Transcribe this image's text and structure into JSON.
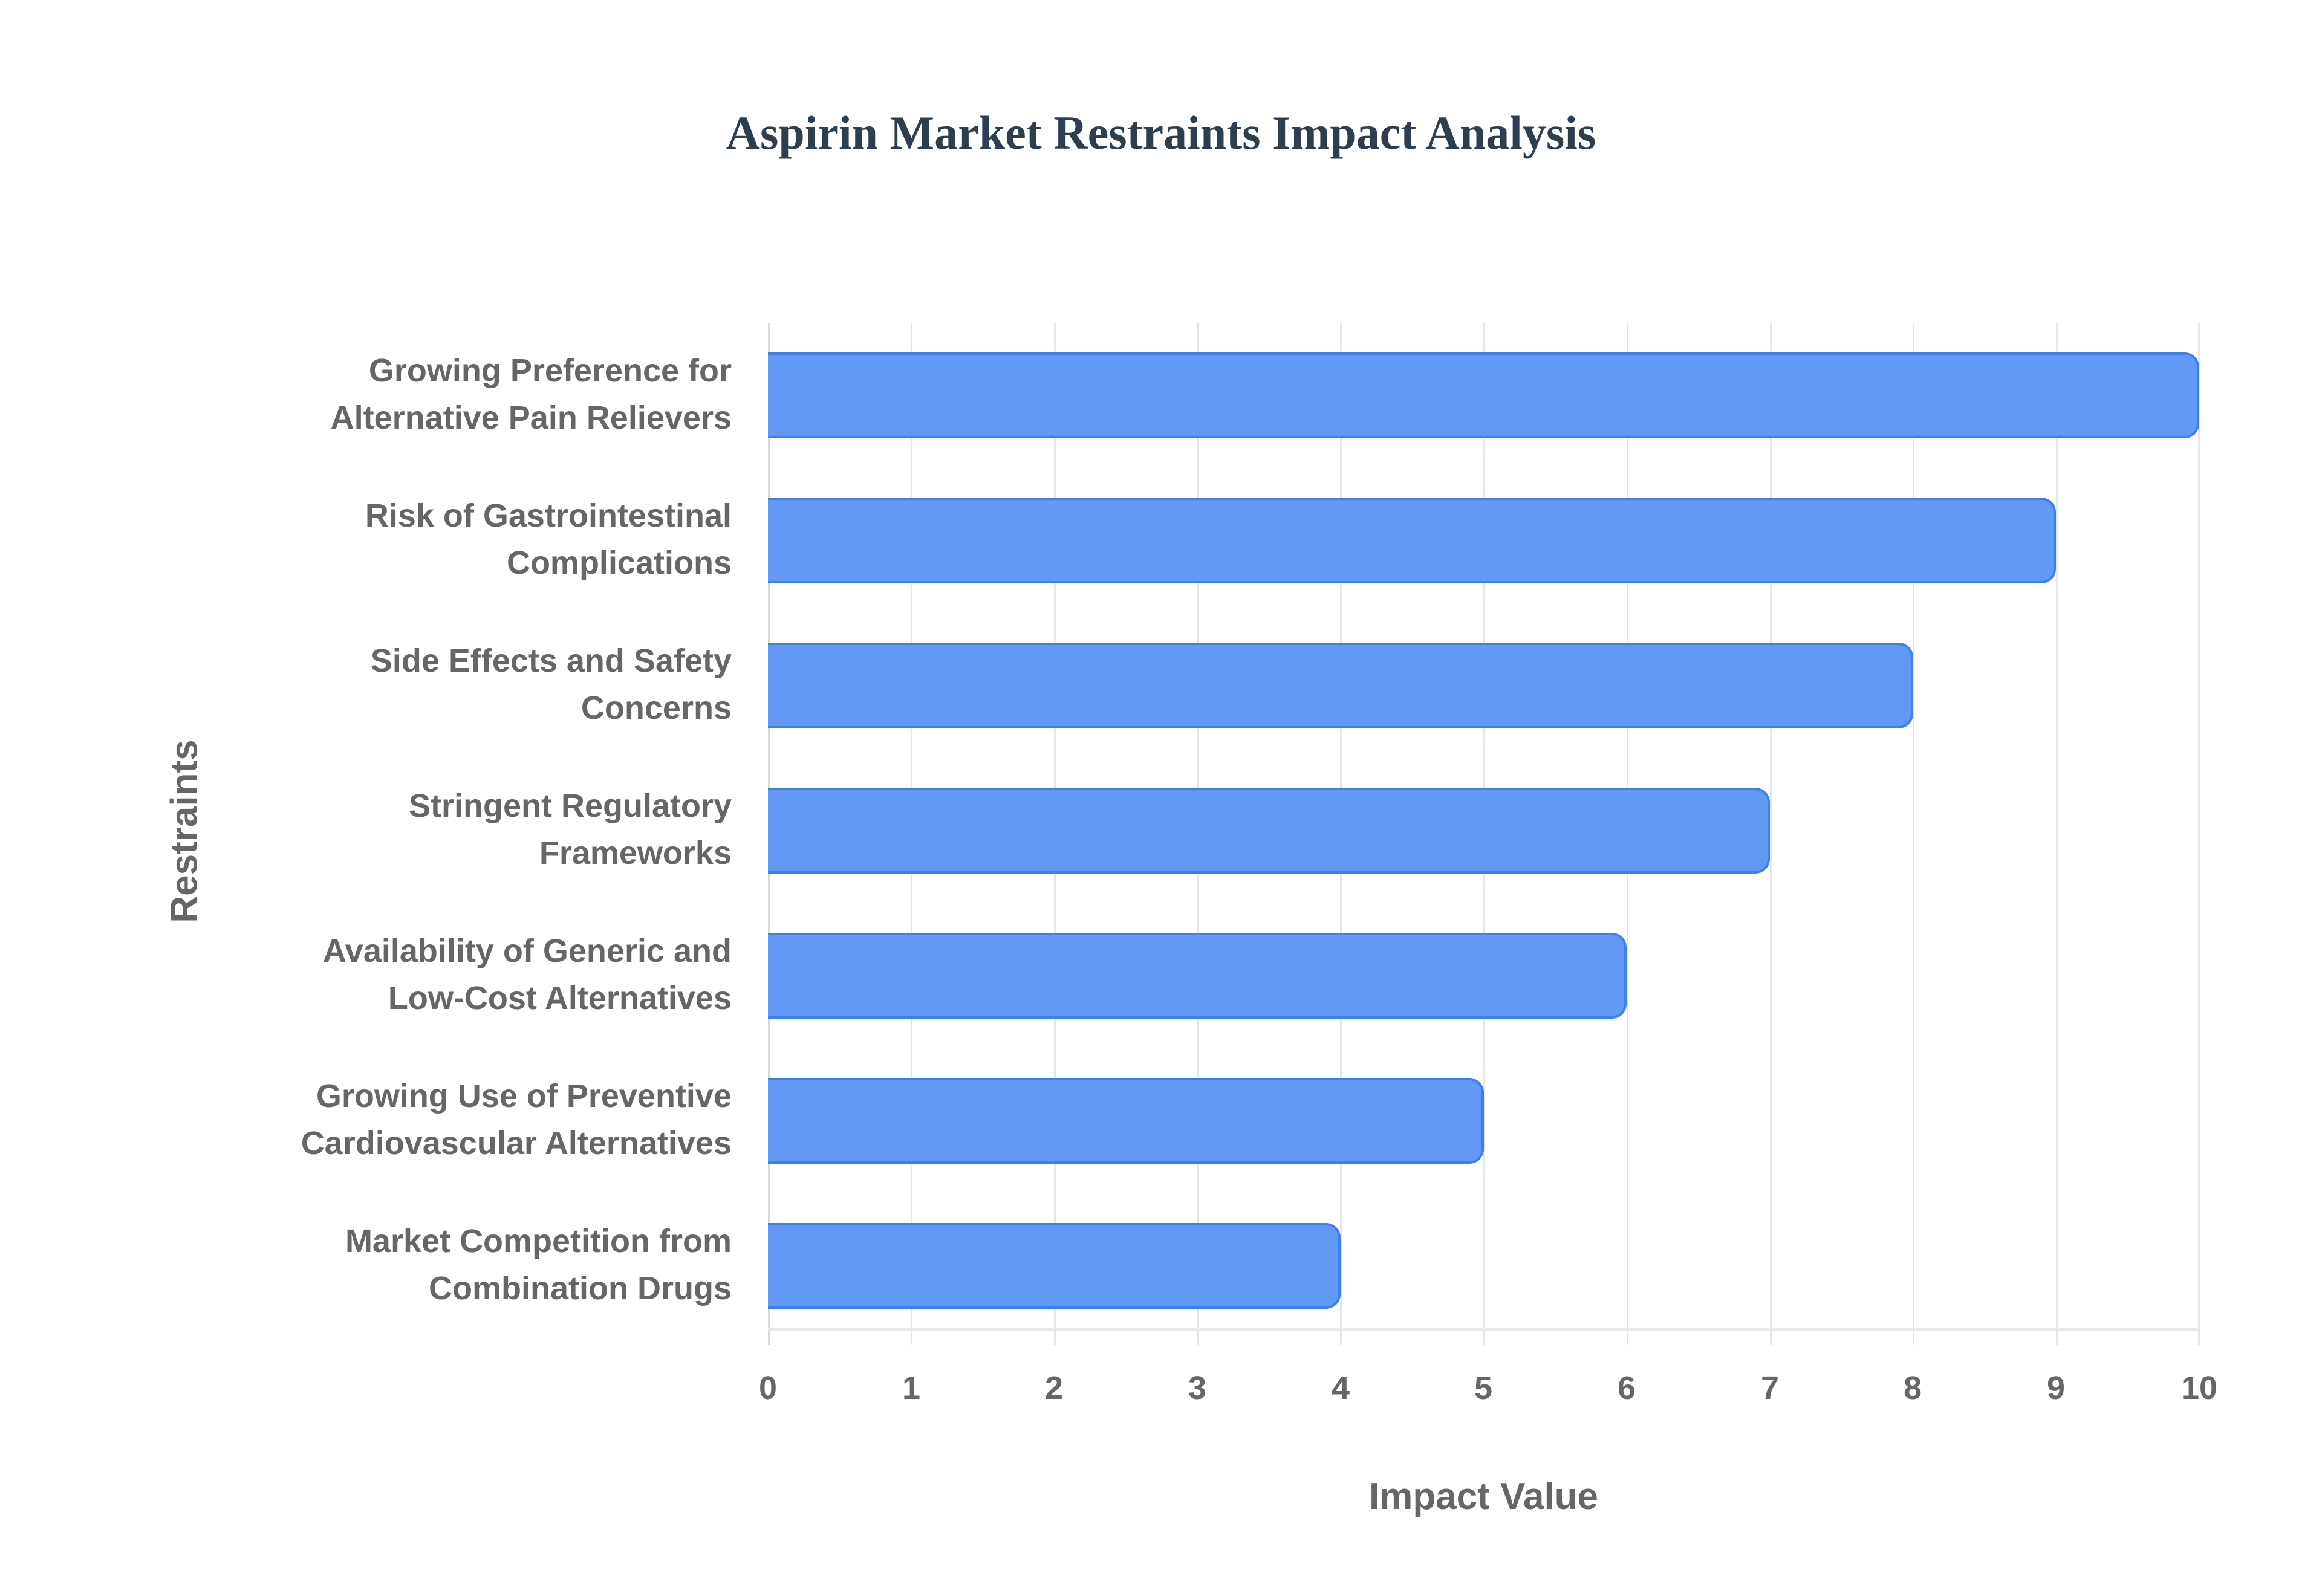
{
  "title": "Aspirin Market Restraints Impact Analysis",
  "axes": {
    "x_title": "Impact Value",
    "y_title": "Restraints",
    "x_ticks": [
      "0",
      "1",
      "2",
      "3",
      "4",
      "5",
      "6",
      "7",
      "8",
      "9",
      "10"
    ]
  },
  "categories": [
    {
      "line1": "Growing Preference for",
      "line2": "Alternative Pain Relievers",
      "value": 10
    },
    {
      "line1": "Risk of Gastrointestinal",
      "line2": "Complications",
      "value": 9
    },
    {
      "line1": "Side Effects and Safety",
      "line2": "Concerns",
      "value": 8
    },
    {
      "line1": "Stringent Regulatory",
      "line2": "Frameworks",
      "value": 7
    },
    {
      "line1": "Availability of Generic and",
      "line2": "Low-Cost Alternatives",
      "value": 6
    },
    {
      "line1": "Growing Use of Preventive",
      "line2": "Cardiovascular Alternatives",
      "value": 5
    },
    {
      "line1": "Market Competition from",
      "line2": "Combination Drugs",
      "value": 4
    }
  ],
  "colors": {
    "bar_fill": "#6199f5",
    "bar_border": "#3f7fea",
    "title": "#2c3e50",
    "axis_text": "#666666",
    "grid": "#e6e6e6"
  },
  "chart_data": {
    "type": "bar",
    "orientation": "horizontal",
    "title": "Aspirin Market Restraints Impact Analysis",
    "xlabel": "Impact Value",
    "ylabel": "Restraints",
    "categories": [
      "Growing Preference for Alternative Pain Relievers",
      "Risk of Gastrointestinal Complications",
      "Side Effects and Safety Concerns",
      "Stringent Regulatory Frameworks",
      "Availability of Generic and Low-Cost Alternatives",
      "Growing Use of Preventive Cardiovascular Alternatives",
      "Market Competition from Combination Drugs"
    ],
    "values": [
      10,
      9,
      8,
      7,
      6,
      5,
      4
    ],
    "xlim": [
      0,
      10
    ],
    "x_ticks": [
      0,
      1,
      2,
      3,
      4,
      5,
      6,
      7,
      8,
      9,
      10
    ],
    "grid": {
      "vertical": true,
      "horizontal": false
    },
    "legend": "none"
  }
}
